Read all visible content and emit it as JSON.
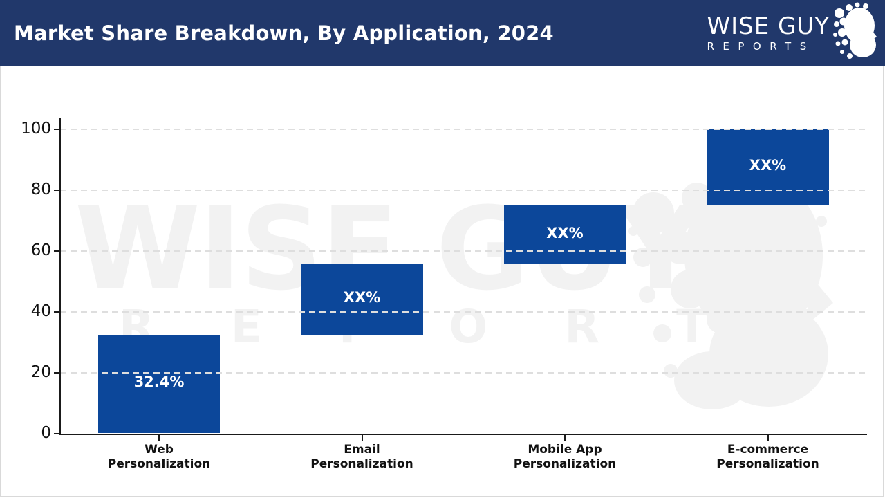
{
  "header": {
    "title": "Market Share Breakdown, By Application, 2024",
    "logo": {
      "name": "WISE GUY",
      "sub": "REPORTS"
    }
  },
  "watermark": {
    "big": "WISE GUY",
    "sub": "R E P O R T S"
  },
  "chart_data": {
    "type": "bar",
    "subtype": "waterfall",
    "title": "Market Share Breakdown, By Application, 2024",
    "categories": [
      "Web Personalization",
      "Email Personalization",
      "Mobile App Personalization",
      "E-commerce Personalization"
    ],
    "category_lines": [
      [
        "Web",
        "Personalization"
      ],
      [
        "Email",
        "Personalization"
      ],
      [
        "Mobile App",
        "Personalization"
      ],
      [
        "E-commerce",
        "Personalization"
      ]
    ],
    "bars": [
      {
        "category": "Web Personalization",
        "start": 0,
        "end": 32.4,
        "label": "32.4%"
      },
      {
        "category": "Email Personalization",
        "start": 32.4,
        "end": 55.5,
        "label": "XX%"
      },
      {
        "category": "Mobile App Personalization",
        "start": 55.5,
        "end": 74.9,
        "label": "XX%"
      },
      {
        "category": "E-commerce Personalization",
        "start": 74.9,
        "end": 100,
        "label": "XX%"
      }
    ],
    "yticks": [
      0,
      20,
      40,
      60,
      80,
      100
    ],
    "ylim": [
      0,
      105
    ],
    "xlabel": "",
    "ylabel": "",
    "grid": "horizontal-dashed",
    "legend": "none"
  },
  "colors": {
    "header_bg": "#21386b",
    "bar": "#0c479a",
    "bar_label": "#ffffff",
    "axis": "#1a1a1a",
    "grid": "#dedede",
    "watermark": "#f2f2f2",
    "border": "#d9d9d9",
    "title_text": "#ffffff"
  }
}
